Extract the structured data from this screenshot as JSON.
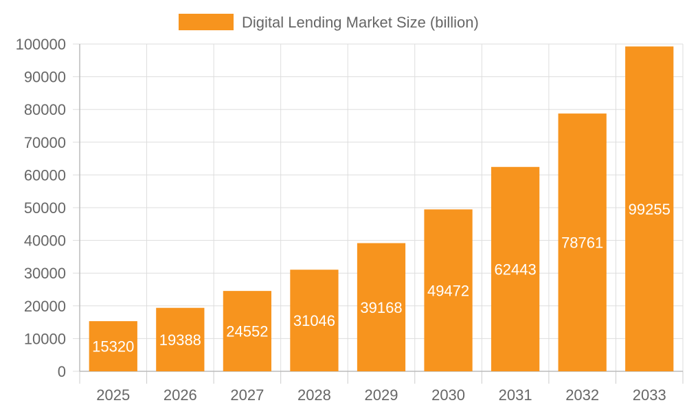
{
  "chart_data": {
    "type": "bar",
    "title": "",
    "xlabel": "",
    "ylabel": "",
    "categories": [
      "2025",
      "2026",
      "2027",
      "2028",
      "2029",
      "2030",
      "2031",
      "2032",
      "2033"
    ],
    "series": [
      {
        "name": "Digital Lending Market Size (billion)",
        "color": "#F7941E",
        "values": [
          15320,
          19388,
          24552,
          31046,
          39168,
          49472,
          62443,
          78761,
          99255
        ]
      }
    ],
    "ylim": [
      0,
      100000
    ],
    "yticks": [
      "0",
      "10000",
      "20000",
      "30000",
      "40000",
      "50000",
      "60000",
      "70000",
      "80000",
      "90000",
      "100000"
    ],
    "grid": true,
    "legend_position": "top",
    "data_labels": true,
    "colors": {
      "bar": "#F7941E",
      "grid": "#dddddd",
      "axis_text": "#666666",
      "data_label": "#ffffff"
    }
  }
}
